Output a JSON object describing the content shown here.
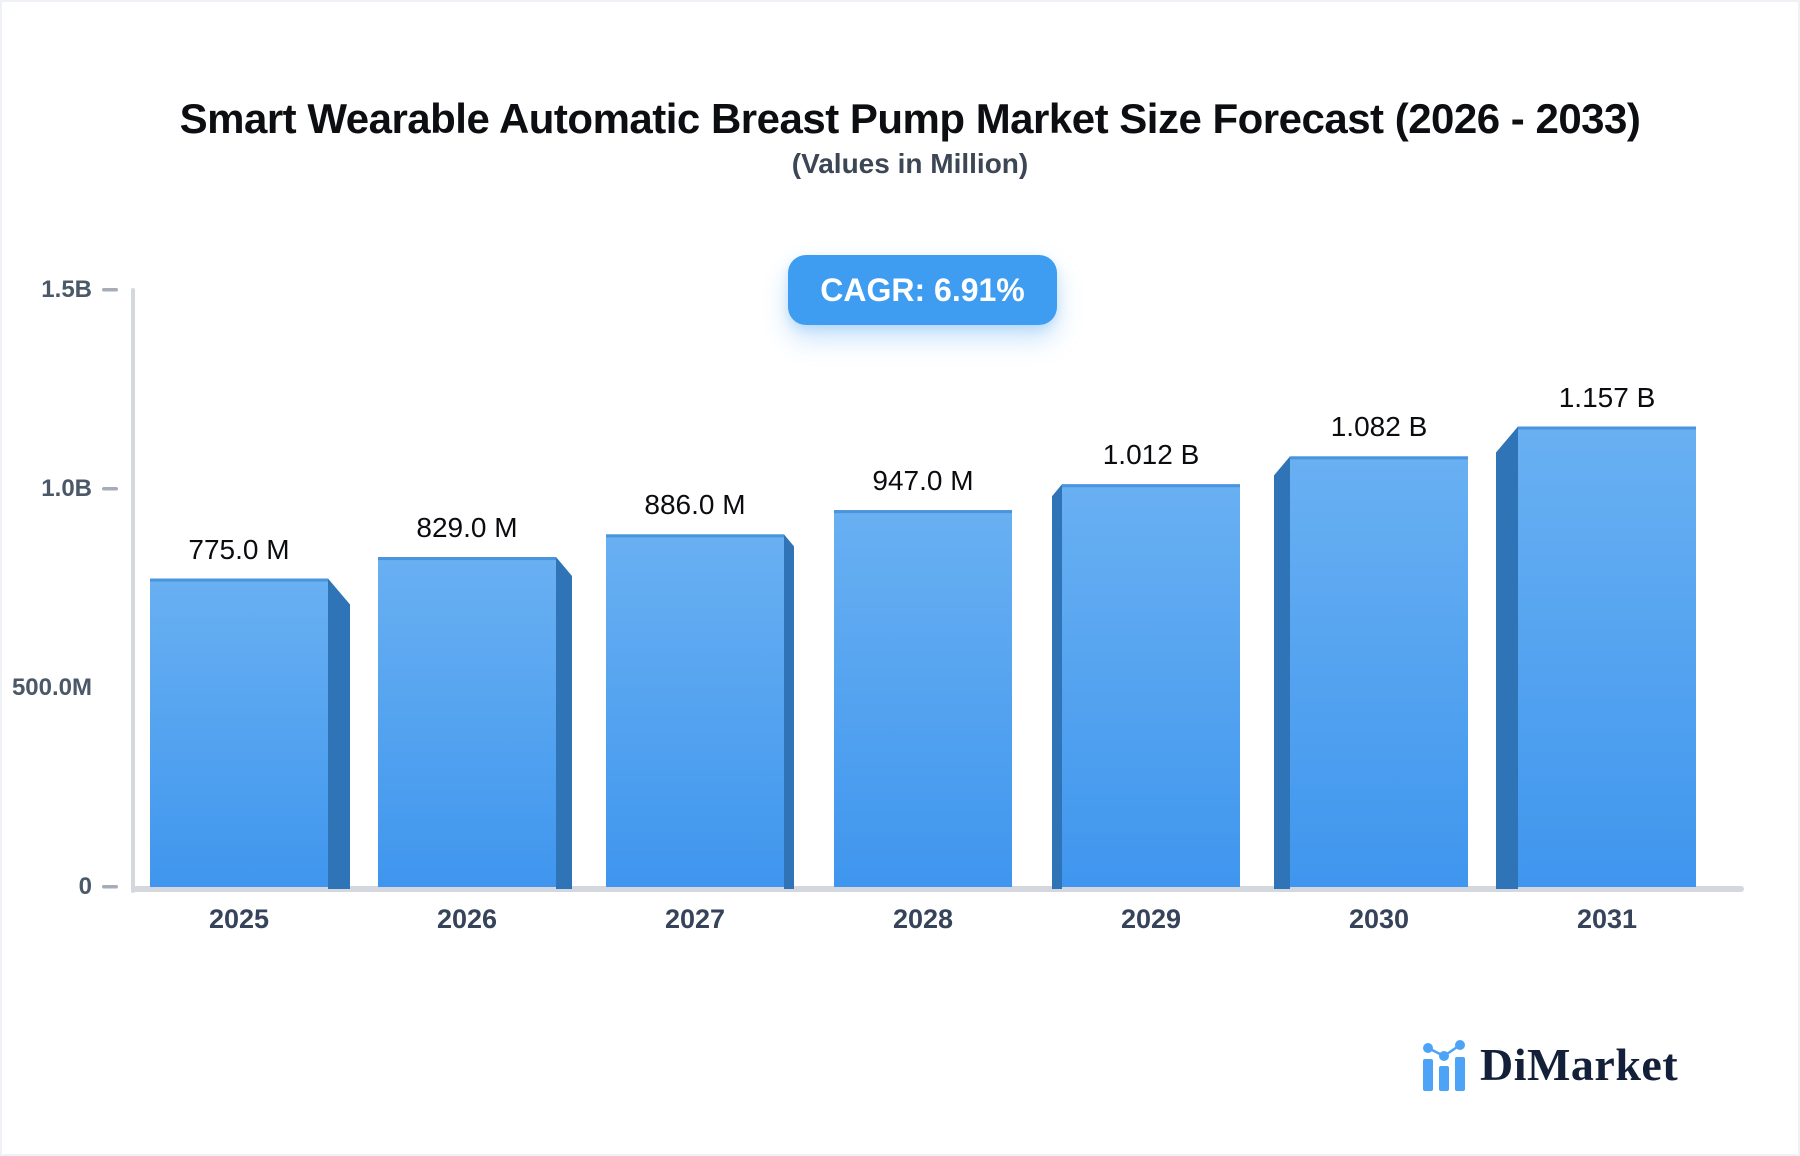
{
  "header": {
    "title": "Smart Wearable Automatic Breast Pump Market Size Forecast (2026 - 2033)",
    "subtitle": "(Values in Million)"
  },
  "badge": {
    "label": "CAGR: 6.91%",
    "bg": "#3f9df1",
    "text_color": "#ffffff"
  },
  "chart_data": {
    "type": "bar",
    "title": "Smart Wearable Automatic Breast Pump Market Size Forecast (2026 - 2033)",
    "subtitle": "(Values in Million)",
    "cagr": "6.91%",
    "categories": [
      "2025",
      "2026",
      "2027",
      "2028",
      "2029",
      "2030",
      "2031"
    ],
    "values": [
      775,
      829,
      886,
      947,
      1012,
      1082,
      1157
    ],
    "value_labels": [
      "775.0 M",
      "829.0 M",
      "886.0 M",
      "947.0 M",
      "1.012 B",
      "1.082 B",
      "1.157 B"
    ],
    "unit": "Million",
    "xlabel": "",
    "ylabel": "",
    "ylim": [
      0,
      1500
    ],
    "yticks": [
      {
        "value": 0,
        "label": "0",
        "dash": true
      },
      {
        "value": 500,
        "label": "500.0M",
        "dash": false
      },
      {
        "value": 1000,
        "label": "1.0B",
        "dash": true
      },
      {
        "value": 1500,
        "label": "1.5B",
        "dash": true
      }
    ],
    "grid": false,
    "legend": "none",
    "colors": {
      "bar_top": "#69b0f2",
      "bar_bottom": "#3f96ee",
      "bar_side": "#2f74b6",
      "bar_edge": "#4a94dd",
      "axis_line": "#d4d8de",
      "tick_dash": "#a6adb7"
    }
  },
  "logo": {
    "text": "DiMarket",
    "icon": "mini-bar-chart-icon",
    "accent": "#4da3f5",
    "text_color": "#14203a"
  }
}
